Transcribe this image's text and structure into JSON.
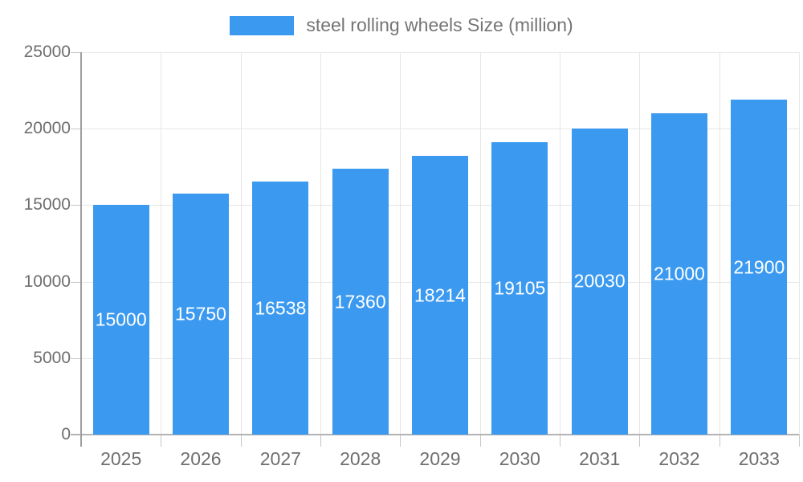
{
  "legend": {
    "label": "steel rolling wheels Size (million)"
  },
  "colors": {
    "bar": "#3B9AF0",
    "bar_label": "#FFFFFF",
    "gridline": "#E6E6E6",
    "axis_line": "#9E9E9E",
    "baseline": "#B3B3B3",
    "tick": "#C6C6C6",
    "axis_text": "#6E6E6E",
    "legend_text": "#757575",
    "background": "#FFFFFF"
  },
  "chart_data": {
    "type": "bar",
    "title": "steel rolling wheels Size (million)",
    "series_name": "steel rolling wheels Size (million)",
    "categories": [
      "2025",
      "2026",
      "2027",
      "2028",
      "2029",
      "2030",
      "2031",
      "2032",
      "2033"
    ],
    "values": [
      15000,
      15750,
      16538,
      17360,
      18214,
      19105,
      20030,
      21000,
      21900
    ],
    "bar_labels": [
      "15000",
      "15750",
      "16538",
      "17360",
      "18214",
      "19105",
      "20030",
      "21000",
      "21900"
    ],
    "xlabel": "",
    "ylabel": "",
    "ylim": [
      0,
      25000
    ],
    "yticks": [
      0,
      5000,
      10000,
      15000,
      20000,
      25000
    ],
    "ytick_labels": [
      "0",
      "5000",
      "10000",
      "15000",
      "20000",
      "25000"
    ],
    "grid": true,
    "legend_position": "top",
    "bar_label_position": "inside-center"
  }
}
